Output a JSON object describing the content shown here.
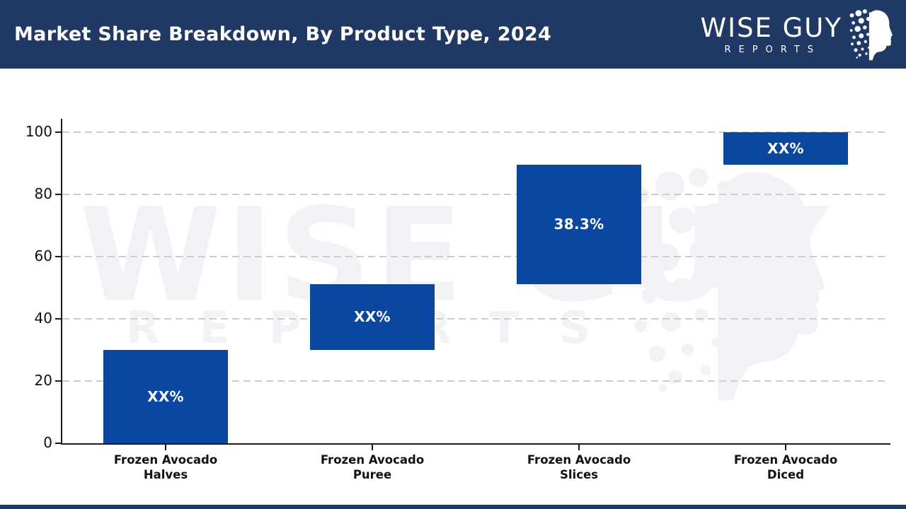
{
  "header": {
    "title": "Market Share Breakdown, By Product Type, 2024",
    "logo": {
      "line1": "WISE GUY",
      "line2": "REPORTS"
    }
  },
  "watermark": {
    "line1": "WISE GUY",
    "line2": "REPORTS"
  },
  "colors": {
    "header_bg": "#203864",
    "footer_bg": "#203864",
    "bar": "#0B479E",
    "bar_label": "#ffffff",
    "grid": "#cccccc",
    "axis": "#1a1a1a",
    "watermark": "#f1f2f5"
  },
  "chart_data": {
    "type": "bar",
    "subtype": "waterfall",
    "title": "Market Share Breakdown, By Product Type, 2024",
    "categories": [
      "Frozen Avocado\nHalves",
      "Frozen Avocado\nPuree",
      "Frozen Avocado\nSlices",
      "Frozen Avocado\nDiced"
    ],
    "series": [
      {
        "name": "Market Share (%)",
        "segments": [
          {
            "category": "Frozen Avocado Halves",
            "start": 0,
            "end": 30,
            "label": "XX%"
          },
          {
            "category": "Frozen Avocado Puree",
            "start": 30,
            "end": 51.2,
            "label": "XX%"
          },
          {
            "category": "Frozen Avocado Slices",
            "start": 51.2,
            "end": 89.5,
            "label": "38.3%"
          },
          {
            "category": "Frozen Avocado Diced",
            "start": 89.5,
            "end": 100,
            "label": "XX%"
          }
        ]
      }
    ],
    "ylim": [
      0,
      100
    ],
    "yticks": [
      0,
      20,
      40,
      60,
      80,
      100
    ],
    "grid": true,
    "legend": false
  }
}
